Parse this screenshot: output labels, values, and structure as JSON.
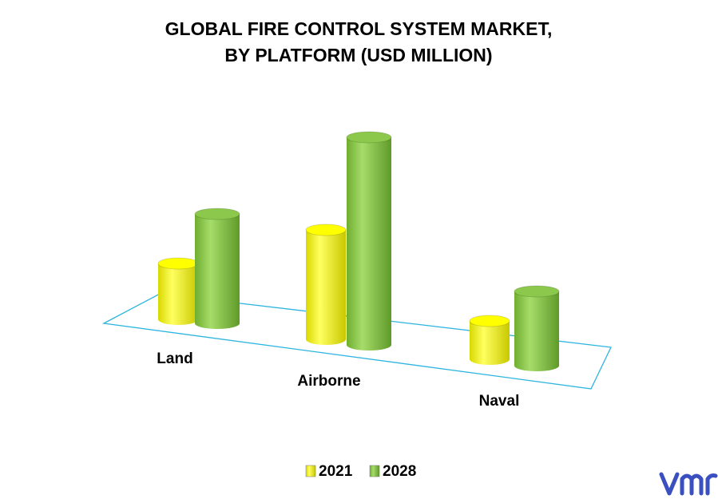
{
  "chart_data": {
    "type": "cylinder3d",
    "title": [
      "GLOBAL FIRE CONTROL SYSTEM MARKET,",
      "BY PLATFORM (USD MILLION)"
    ],
    "categories": [
      "Land",
      "Airborne",
      "Naval"
    ],
    "series": [
      {
        "name": "2021",
        "color": "#ffff00",
        "values": [
          70,
          137,
          48
        ]
      },
      {
        "name": "2028",
        "color": "#8cc84b",
        "values": [
          137,
          260,
          93
        ]
      }
    ],
    "legend": "bottom"
  }
}
